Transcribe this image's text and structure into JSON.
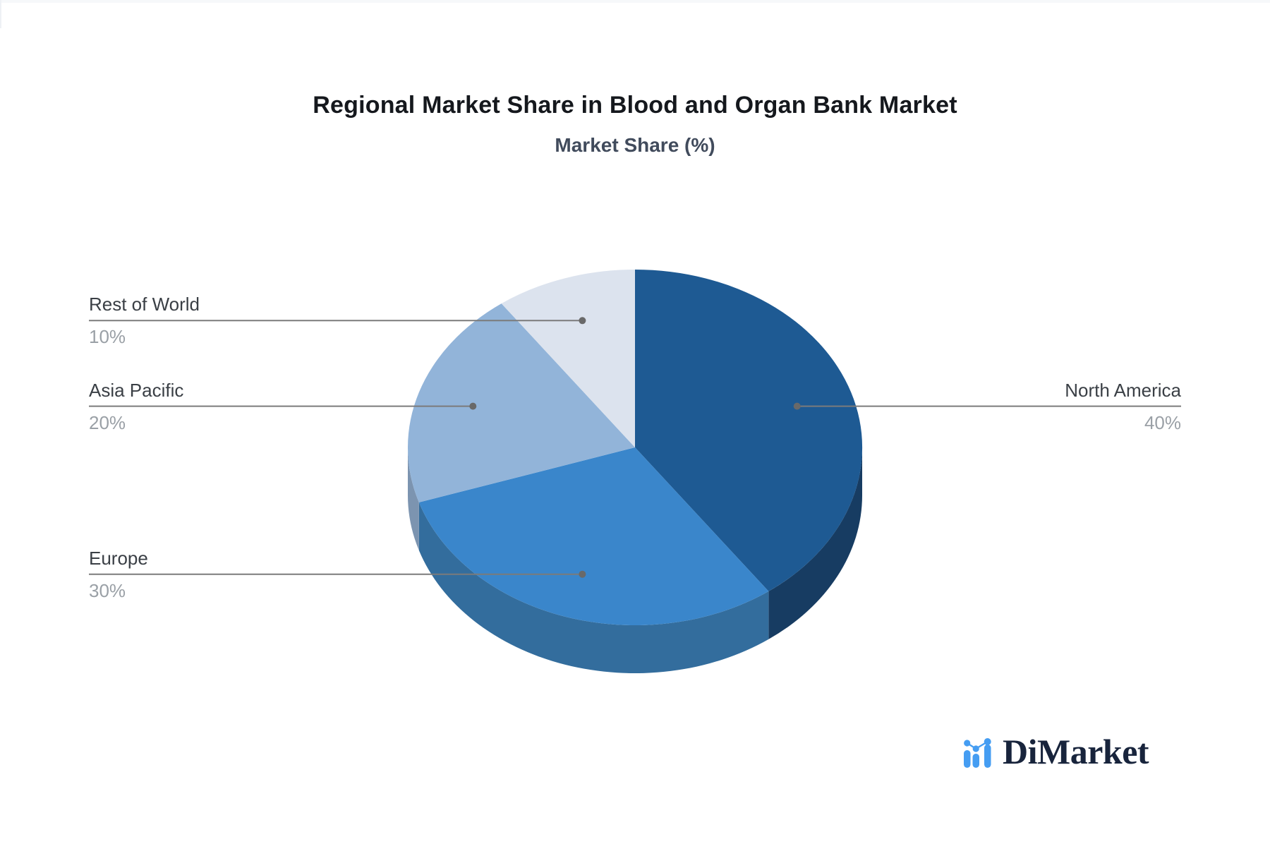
{
  "page": {
    "title": "Regional Market Share in Blood and Organ Bank Market",
    "subtitle": "Market Share (%)"
  },
  "chart_data": {
    "type": "pie",
    "style": "3d",
    "title": "Regional Market Share in Blood and Organ Bank Market",
    "subtitle": "Market Share (%)",
    "unit": "%",
    "direction": "clockwise",
    "start_angle_deg": 0,
    "slices": [
      {
        "name": "North America",
        "value": 40,
        "pct_label": "40%",
        "color": "#1e5a93",
        "side_color": "#173c62",
        "label_side": "right"
      },
      {
        "name": "Europe",
        "value": 30,
        "pct_label": "30%",
        "color": "#3a86cb",
        "side_color": "#336d9d",
        "label_side": "left"
      },
      {
        "name": "Asia Pacific",
        "value": 20,
        "pct_label": "20%",
        "color": "#92b4d9",
        "side_color": "#7c94b0",
        "label_side": "left"
      },
      {
        "name": "Rest of World",
        "value": 10,
        "pct_label": "10%",
        "color": "#dce3ee",
        "side_color": "#c3cddd",
        "label_side": "left"
      }
    ],
    "leader_line_color": "#7b7b7b",
    "leader_dot_color": "#696969",
    "label_text_color": "#3a3f45",
    "pct_text_color": "#9aa0a6",
    "legend_position": "none"
  },
  "branding": {
    "logo_text": "DiMarket",
    "logo_icon": "bar-chart-trend-icon",
    "logo_icon_color": "#459df2",
    "logo_text_color": "#18243c"
  }
}
